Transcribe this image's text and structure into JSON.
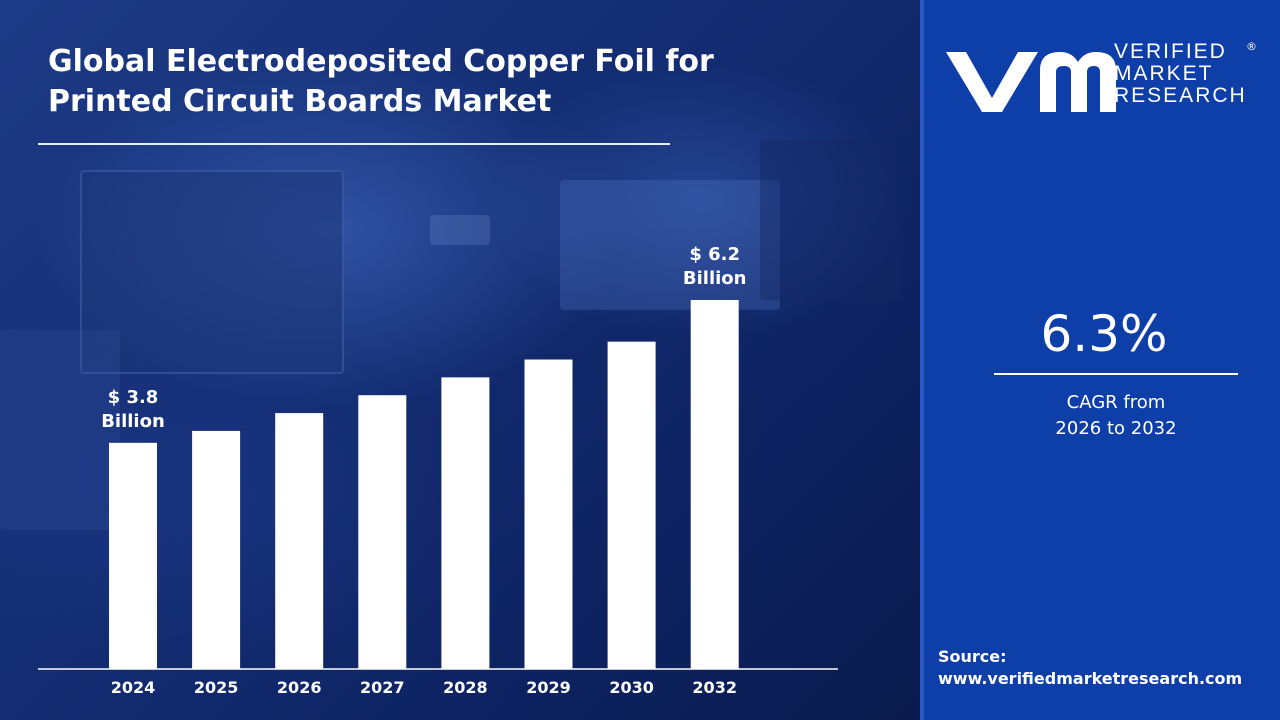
{
  "header": {
    "title_line1": "Global Electrodeposited Copper Foil for",
    "title_line2": "Printed Circuit Boards Market"
  },
  "brand": {
    "logo_line1": "VERIFIED",
    "logo_line2": "MARKET",
    "logo_line3": "RESEARCH",
    "registered_mark": "®"
  },
  "stats": {
    "cagr_value": "6.3%",
    "cagr_label_line1": "CAGR from",
    "cagr_label_line2": "2026 to 2032"
  },
  "source": {
    "label": "Source:",
    "url": "www.verifiedmarketresearch.com"
  },
  "colors": {
    "bar": "#ffffff",
    "right_panel": "#0e3ea8",
    "text": "#ffffff"
  },
  "chart_data": {
    "type": "bar",
    "categories": [
      "2024",
      "2025",
      "2026",
      "2027",
      "2028",
      "2029",
      "2030",
      "2032"
    ],
    "values": [
      3.8,
      4.0,
      4.3,
      4.6,
      4.9,
      5.2,
      5.5,
      6.2
    ],
    "units": "USD Billion",
    "ylim": [
      0,
      6.5
    ],
    "grid": false,
    "data_labels": [
      {
        "index": 0,
        "line1": "$ 3.8",
        "line2": "Billion"
      },
      {
        "index": 7,
        "line1": "$ 6.2",
        "line2": "Billion"
      }
    ]
  }
}
